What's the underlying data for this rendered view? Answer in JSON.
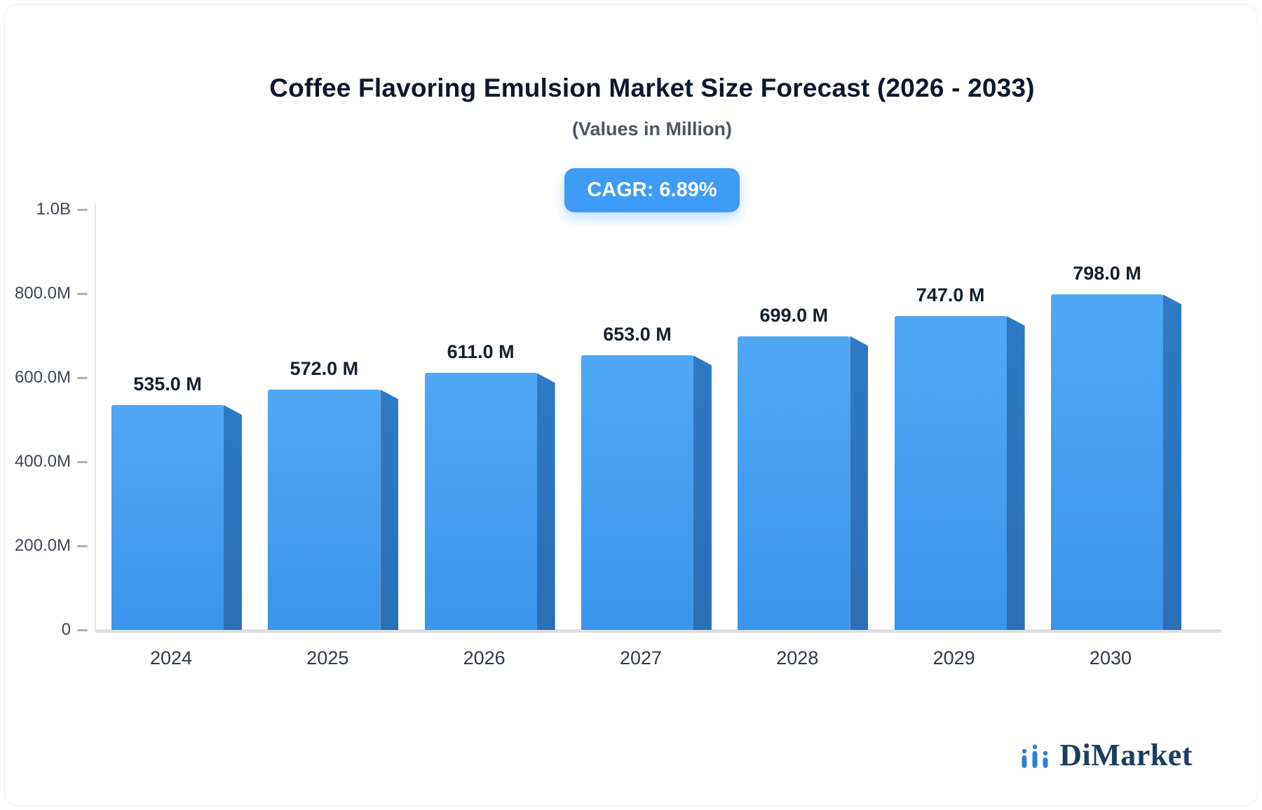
{
  "title": "Coffee Flavoring Emulsion Market Size Forecast (2026 - 2033)",
  "subtitle": "(Values in Million)",
  "cagr_badge": "CAGR: 6.89%",
  "logo": {
    "text": "DiMarket",
    "icon": "bar-chart-icon",
    "icon_color": "#2f7fd6",
    "text_color": "#1c3d63"
  },
  "colors": {
    "bar_face_top": "#50a7f4",
    "bar_face_bottom": "#3a95ec",
    "bar_side": "#2d74bf",
    "badge_bg": "#3e9cf6",
    "axis": "#dcdfe4"
  },
  "chart_data": {
    "type": "bar",
    "title": "Coffee Flavoring Emulsion Market Size Forecast (2026 - 2033)",
    "subtitle": "(Values in Million)",
    "categories": [
      "2024",
      "2025",
      "2026",
      "2027",
      "2028",
      "2029",
      "2030"
    ],
    "values": [
      535,
      572,
      611,
      653,
      699,
      747,
      798
    ],
    "value_labels": [
      "535.0 M",
      "572.0 M",
      "611.0 M",
      "653.0 M",
      "699.0 M",
      "747.0 M",
      "798.0 M"
    ],
    "unit": "Million",
    "xlabel": "",
    "ylabel": "",
    "ylim": [
      0,
      1000
    ],
    "y_ticks": [
      {
        "value": 0,
        "label": "0"
      },
      {
        "value": 200,
        "label": "200.0M"
      },
      {
        "value": 400,
        "label": "400.0M"
      },
      {
        "value": 600,
        "label": "600.0M"
      },
      {
        "value": 800,
        "label": "800.0M"
      },
      {
        "value": 1000,
        "label": "1.0B"
      }
    ],
    "grid": false,
    "legend": false,
    "annotations": [
      "CAGR: 6.89%"
    ]
  }
}
